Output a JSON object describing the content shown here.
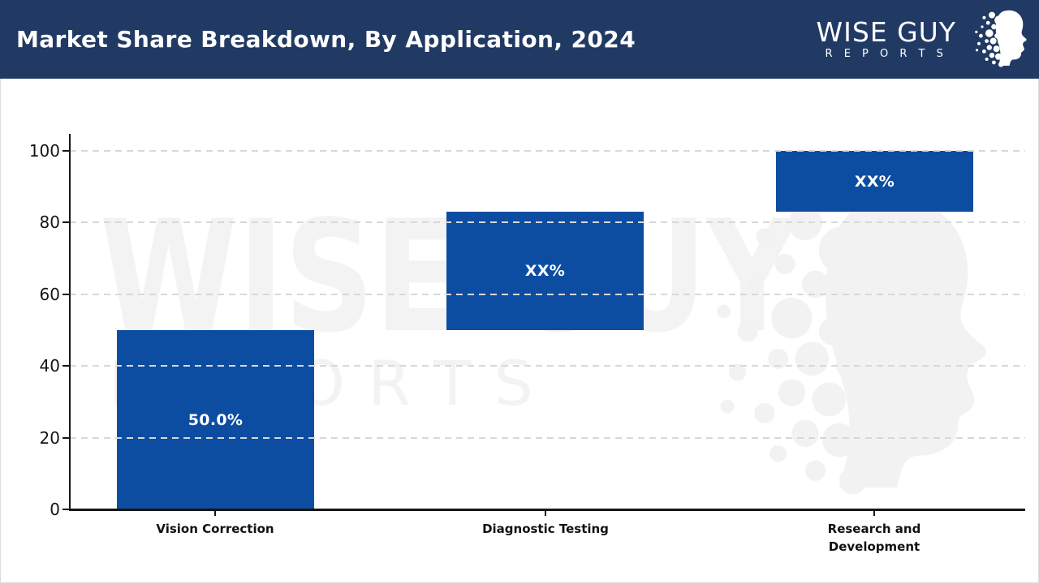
{
  "header": {
    "title": "Market Share Breakdown, By Application, 2024",
    "logo": {
      "wordmark": "WISE GUY",
      "subtext": "R E P O R T S",
      "face_icon": "dotted-face-profile"
    }
  },
  "watermark": {
    "line1": "WISE GUY",
    "line2": "R E P O R T S",
    "face_icon": "dotted-face-profile"
  },
  "colors": {
    "header_bg": "#213a64",
    "bar_fill": "#0c4da2",
    "bar_label_text": "#ffffff",
    "axis": "#151515",
    "gridline": "#d8d8d8",
    "watermark": "#f3f3f3"
  },
  "chart_data": {
    "type": "bar",
    "subtype": "stacked-waterfall",
    "title": "Market Share Breakdown, By Application, 2024",
    "categories": [
      "Vision Correction",
      "Diagnostic Testing",
      "Research and Development"
    ],
    "bars": [
      {
        "category": "Vision Correction",
        "start": 0,
        "end": 50,
        "label": "50.0%"
      },
      {
        "category": "Diagnostic Testing",
        "start": 50,
        "end": 83,
        "label": "XX%"
      },
      {
        "category": "Research and Development",
        "start": 83,
        "end": 100,
        "label": "XX%"
      }
    ],
    "ylim": [
      0,
      100
    ],
    "yticks": [
      "0",
      "20",
      "40",
      "60",
      "80",
      "100"
    ],
    "xlabel": "",
    "ylabel": "",
    "grid": "horizontal-dashed",
    "legend": "none"
  }
}
